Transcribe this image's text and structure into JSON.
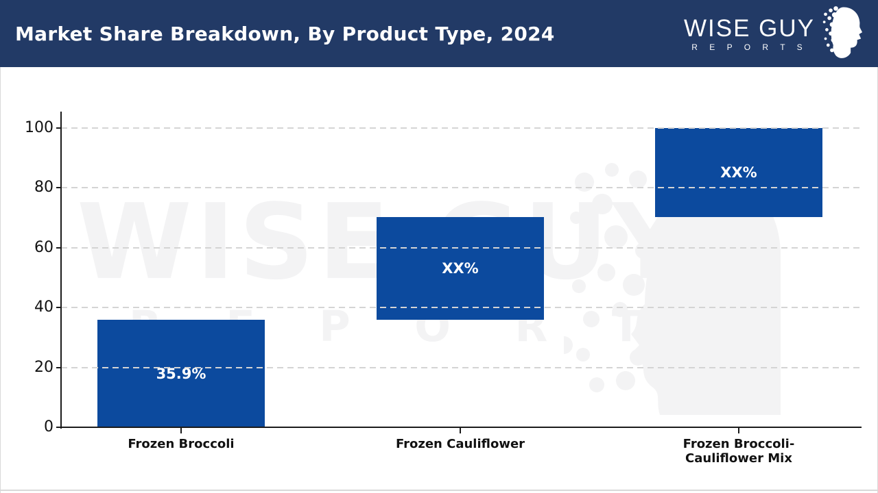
{
  "header": {
    "title": "Market Share Breakdown, By Product Type, 2024",
    "brand_line1": "WISE GUY",
    "brand_line2": "R E P O R T S"
  },
  "watermark": {
    "line1": "WISE GUY",
    "line2": "R E P O R T S"
  },
  "colors": {
    "header_bg": "#223a66",
    "bar": "#0c4a9e",
    "bar_label": "#ffffff",
    "axis": "#1a1a1a",
    "grid": "#d4d4d4",
    "watermark": "#f3f3f4"
  },
  "chart_data": {
    "type": "bar",
    "subtype": "stepped-waterfall",
    "title": "Market Share Breakdown, By Product Type, 2024",
    "categories": [
      "Frozen Broccoli",
      "Frozen Cauliflower",
      "Frozen Broccoli-\nCauliflower Mix"
    ],
    "segments": [
      {
        "category": "Frozen Broccoli",
        "start": 0,
        "end": 35.9,
        "display": "35.9%"
      },
      {
        "category": "Frozen Cauliflower",
        "start": 35.9,
        "end": 70.2,
        "display": "XX%"
      },
      {
        "category": "Frozen Broccoli-Cauliflower Mix",
        "start": 70.2,
        "end": 100,
        "display": "XX%"
      }
    ],
    "bar_labels": [
      "35.9%",
      "XX%",
      "XX%"
    ],
    "ylim": [
      0,
      100
    ],
    "yticks": [
      0,
      20,
      40,
      60,
      80,
      100
    ],
    "grid": "horizontal-dashed",
    "legend": "none"
  }
}
